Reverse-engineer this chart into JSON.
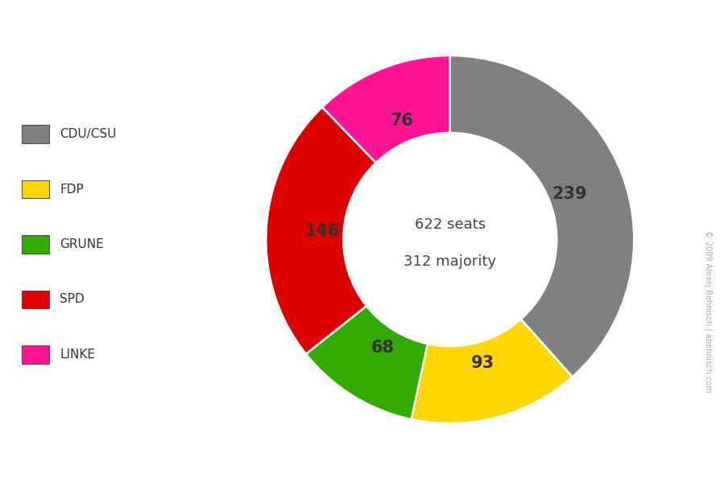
{
  "parties": [
    "CDU/CSU",
    "FDP",
    "GRUNE",
    "SPD",
    "LINKE"
  ],
  "seats": [
    239,
    93,
    68,
    146,
    76
  ],
  "colors": [
    "#808080",
    "#FFD700",
    "#33AA00",
    "#DD0000",
    "#FF1493"
  ],
  "center_text_line1": "622 seats",
  "center_text_line2": "312 majority",
  "legend_labels": [
    "CDU/CSU",
    "FDP",
    "GRUNE",
    "SPD",
    "LINKE"
  ],
  "wedge_label_color": "#333333",
  "background_color": "#FFFFFF",
  "donut_width": 0.42,
  "start_angle": 90,
  "copyright_text": "© 2009 Alexej Behnisch | abehnisch.com"
}
